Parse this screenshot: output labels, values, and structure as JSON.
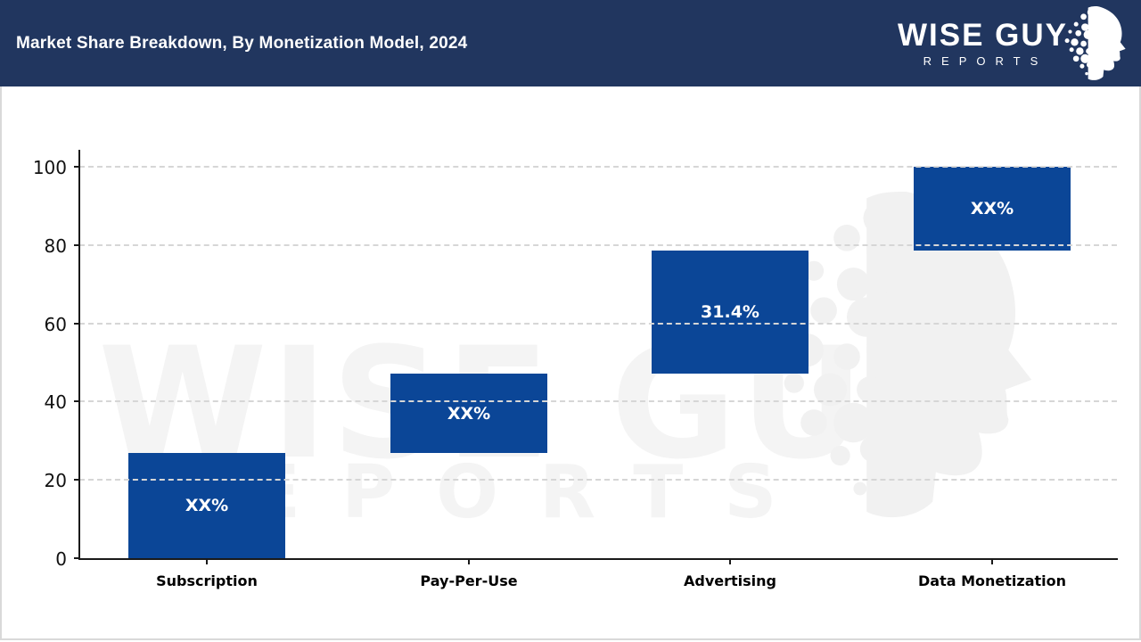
{
  "header": {
    "title": "Market Share Breakdown, By Monetization Model, 2024",
    "logo": {
      "line1": "WISE GUY",
      "line2": "REPORTS"
    }
  },
  "watermark": {
    "line1": "WISE GUY",
    "line2": "REPORTS"
  },
  "colors": {
    "header_bg": "#21365f",
    "bar": "#0b4697",
    "bar_label": "#ffffff",
    "grid": "#d6d6d6",
    "axis": "#1a1a1a",
    "tick_text": "#111111",
    "watermark": "#f3f3f3",
    "frame_border": "#d9d9d9"
  },
  "chart_data": {
    "type": "bar",
    "subtype": "waterfall",
    "title": "Market Share Breakdown, By Monetization Model, 2024",
    "categories": [
      "Subscription",
      "Pay-Per-Use",
      "Advertising",
      "Data Monetization"
    ],
    "segments": [
      {
        "category": "Subscription",
        "start": 0,
        "end": 26.9,
        "value": 26.9,
        "label": "XX%"
      },
      {
        "category": "Pay-Per-Use",
        "start": 26.9,
        "end": 47.1,
        "value": 20.2,
        "label": "XX%"
      },
      {
        "category": "Advertising",
        "start": 47.1,
        "end": 78.5,
        "value": 31.4,
        "label": "31.4%"
      },
      {
        "category": "Data Monetization",
        "start": 78.5,
        "end": 100,
        "value": 21.5,
        "label": "XX%"
      }
    ],
    "yticks": [
      0,
      20,
      40,
      60,
      80,
      100
    ],
    "ylim": [
      0,
      100
    ],
    "xlabel": "",
    "ylabel": "",
    "grid": "horizontal-dashed",
    "legend": "none"
  }
}
